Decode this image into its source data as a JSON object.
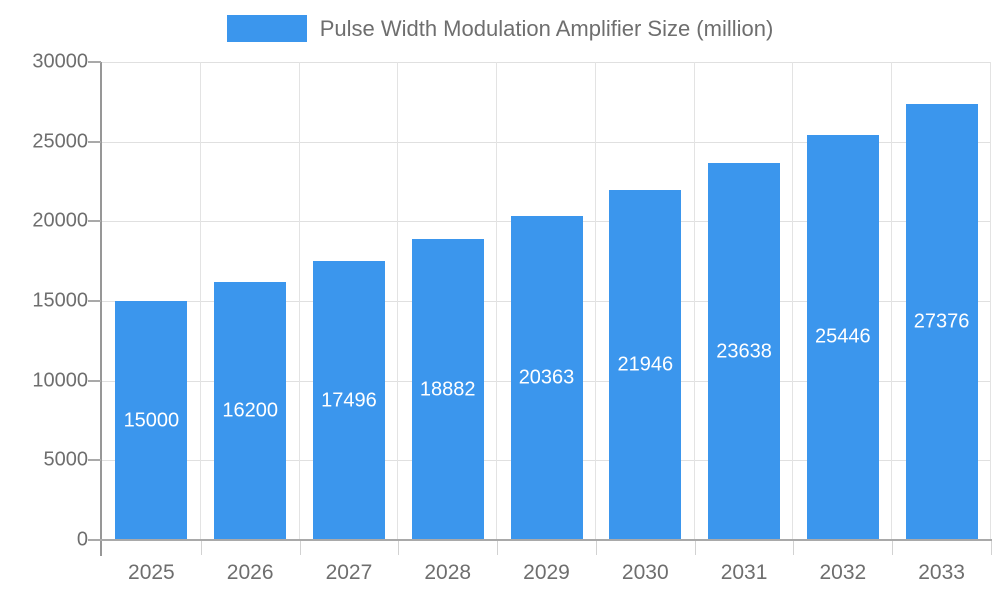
{
  "legend": {
    "label": "Pulse Width Modulation Amplifier Size (million)",
    "swatch_color": "#3B96ED"
  },
  "chart_data": {
    "type": "bar",
    "title": "",
    "categories": [
      "2025",
      "2026",
      "2027",
      "2028",
      "2029",
      "2030",
      "2031",
      "2032",
      "2033"
    ],
    "series": [
      {
        "name": "Pulse Width Modulation Amplifier Size (million)",
        "values": [
          15000,
          16200,
          17496,
          18882,
          20363,
          21946,
          23638,
          25446,
          27376
        ]
      }
    ],
    "xlabel": "",
    "ylabel": "",
    "ylim": [
      0,
      30000
    ],
    "yticks": [
      0,
      5000,
      10000,
      15000,
      20000,
      25000,
      30000
    ],
    "grid": true,
    "legend_position": "top",
    "value_labels_position": "inside-center",
    "colors": {
      "bar": "#3B96ED",
      "value_label": "#FFFFFF",
      "axis_text": "#6E6E6E",
      "gridline": "#E0E0E0",
      "axis_line": "#A9A9A9",
      "background": "#FFFFFF"
    }
  }
}
